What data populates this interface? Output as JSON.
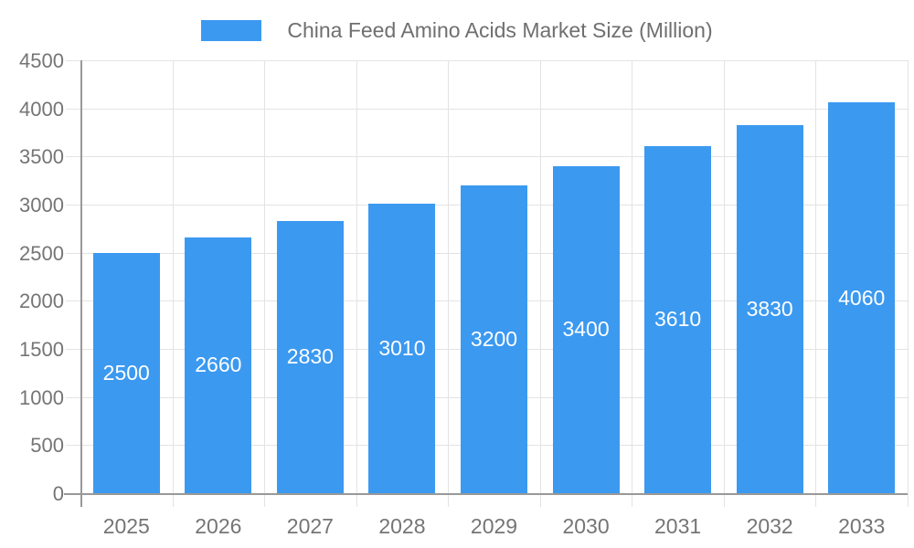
{
  "legend": {
    "label": "China Feed Amino Acids Market Size (Million)"
  },
  "chart_data": {
    "type": "bar",
    "title": "China Feed Amino Acids Market Size (Million)",
    "categories": [
      "2025",
      "2026",
      "2027",
      "2028",
      "2029",
      "2030",
      "2031",
      "2032",
      "2033"
    ],
    "values": [
      2500,
      2660,
      2830,
      3010,
      3200,
      3400,
      3610,
      3830,
      4060
    ],
    "series": [
      {
        "name": "China Feed Amino Acids Market Size (Million)",
        "values": [
          2500,
          2660,
          2830,
          3010,
          3200,
          3400,
          3610,
          3830,
          4060
        ]
      }
    ],
    "xlabel": "",
    "ylabel": "",
    "ylim": [
      0,
      4500
    ],
    "ytick_step": 500,
    "grid": true,
    "legend_position": "top-center",
    "value_labels": "inside-center",
    "colors": {
      "bar": "#3B99F0",
      "axis": "#999999",
      "grid": "#E3E3E3",
      "tick_label": "#757575",
      "title_text": "#6F6F6F",
      "bar_label": "#FFFFFF",
      "background": "#FFFFFF"
    }
  }
}
